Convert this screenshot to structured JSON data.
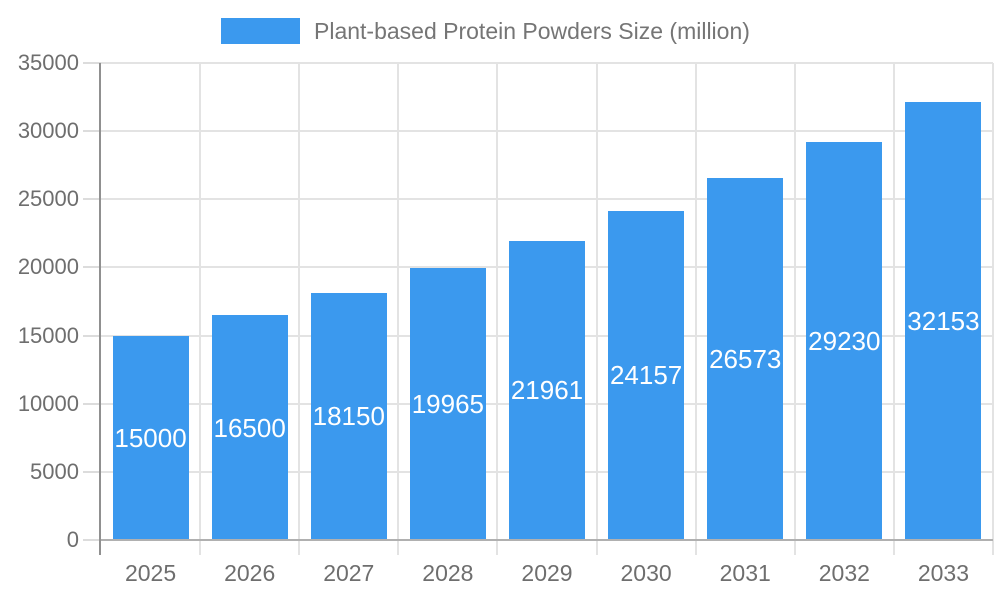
{
  "legend": {
    "label": "Plant-based Protein Powders Size (million)"
  },
  "chart_data": {
    "type": "bar",
    "title": "Plant-based Protein Powders Size (million)",
    "categories": [
      "2025",
      "2026",
      "2027",
      "2028",
      "2029",
      "2030",
      "2031",
      "2032",
      "2033"
    ],
    "values": [
      15000,
      16500,
      18150,
      19965,
      21961,
      24157,
      26573,
      29230,
      32153
    ],
    "xlabel": "",
    "ylabel": "",
    "ylim": [
      0,
      35000
    ],
    "yticks": [
      0,
      5000,
      10000,
      15000,
      20000,
      25000,
      30000,
      35000
    ],
    "grid": true,
    "legend_position": "top",
    "value_labels": "inside-center-white"
  },
  "colors": {
    "bar": "#3b99ee",
    "gridline": "#e3e3e3",
    "tick": "#dcdcdc",
    "axis_line": "#909090",
    "baseline": "#b0b0b0",
    "axis_label": "#6e6e6e",
    "legend_text": "#757575",
    "background": "#ffffff",
    "bar_value_text": "#ffffff"
  }
}
